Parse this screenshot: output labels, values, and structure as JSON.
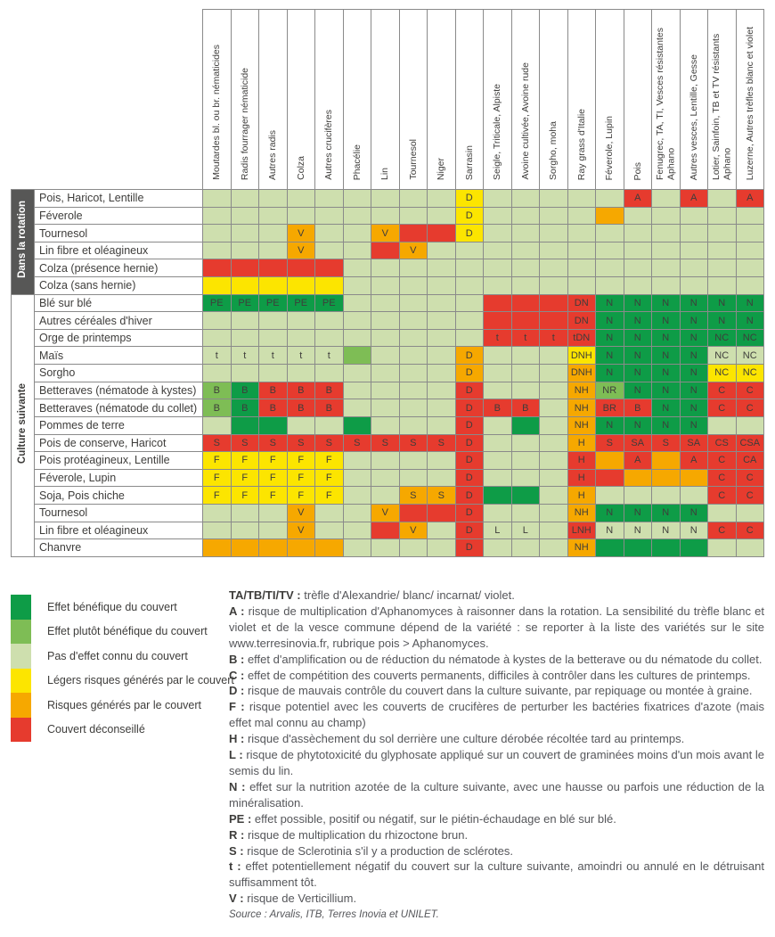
{
  "palette": {
    "dark_green": "#0E9C47",
    "medium_green": "#7EBD55",
    "light_green": "#CEDFAE",
    "yellow": "#FCE500",
    "orange": "#F6A800",
    "red": "#E63B2E",
    "band_gray": "#575756",
    "grid_line": "#8A8A8A",
    "letter_color": "#3E3D3B"
  },
  "cell_color_keys": {
    "G": "dark_green",
    "g": "medium_green",
    "L": "light_green",
    "Y": "yellow",
    "O": "orange",
    "R": "red"
  },
  "table": {
    "column_headers": [
      "Moutardes bl. ou br. nématicides",
      "Radis fourrager nématicide",
      "Autres radis",
      "Colza",
      "Autres crucifères",
      "Phacélie",
      "Lin",
      "Tournesol",
      "Niger",
      "Sarrasin",
      "Seigle, Triticale, Alpiste",
      "Avoine cultivée, Avoine rude",
      "Sorgho, moha",
      "Ray grass d'Italie",
      "Féverole, Lupin",
      "Pois",
      "Fenugrec, TA, TI, Vesces résistantes Aphano",
      "Autres vesces, Lentille, Gesse",
      "Lotier, Sainfoin, TB et TV résistants Aphano",
      "Luzerne, Autres trèfles blanc et violet"
    ],
    "row_groups": [
      {
        "label": "Dans la rotation",
        "start": 0,
        "span": 6,
        "style": "dark"
      },
      {
        "label": "Culture suivante",
        "start": 6,
        "span": 15,
        "style": "light"
      }
    ],
    "rows": [
      {
        "label": "Pois, Haricot, Lentille",
        "cells": [
          "L",
          "L",
          "L",
          "L",
          "L",
          "L",
          "L",
          "L",
          "L",
          "Y:D",
          "L",
          "L",
          "L",
          "L",
          "L",
          "R:A",
          "L",
          "R:A",
          "L",
          "R:A"
        ]
      },
      {
        "label": "Féverole",
        "cells": [
          "L",
          "L",
          "L",
          "L",
          "L",
          "L",
          "L",
          "L",
          "L",
          "Y:D",
          "L",
          "L",
          "L",
          "L",
          "O",
          "L",
          "L",
          "L",
          "L",
          "L"
        ]
      },
      {
        "label": "Tournesol",
        "cells": [
          "L",
          "L",
          "L",
          "O:V",
          "L",
          "L",
          "O:V",
          "R",
          "R",
          "Y:D",
          "L",
          "L",
          "L",
          "L",
          "L",
          "L",
          "L",
          "L",
          "L",
          "L"
        ]
      },
      {
        "label": "Lin fibre et oléagineux",
        "cells": [
          "L",
          "L",
          "L",
          "O:V",
          "L",
          "L",
          "R",
          "O:V",
          "L",
          "L",
          "L",
          "L",
          "L",
          "L",
          "L",
          "L",
          "L",
          "L",
          "L",
          "L"
        ]
      },
      {
        "label": "Colza (présence hernie)",
        "cells": [
          "R",
          "R",
          "R",
          "R",
          "R",
          "L",
          "L",
          "L",
          "L",
          "L",
          "L",
          "L",
          "L",
          "L",
          "L",
          "L",
          "L",
          "L",
          "L",
          "L"
        ]
      },
      {
        "label": "Colza (sans hernie)",
        "cells": [
          "Y",
          "Y",
          "Y",
          "Y",
          "Y",
          "L",
          "L",
          "L",
          "L",
          "L",
          "L",
          "L",
          "L",
          "L",
          "L",
          "L",
          "L",
          "L",
          "L",
          "L"
        ]
      },
      {
        "label": "Blé sur blé",
        "cells": [
          "G:PE",
          "G:PE",
          "G:PE",
          "G:PE",
          "G:PE",
          "L",
          "L",
          "L",
          "L",
          "L",
          "R",
          "R",
          "R",
          "R:DN",
          "G:N",
          "G:N",
          "G:N",
          "G:N",
          "G:N",
          "G:N"
        ]
      },
      {
        "label": "Autres céréales d'hiver",
        "cells": [
          "L",
          "L",
          "L",
          "L",
          "L",
          "L",
          "L",
          "L",
          "L",
          "L",
          "R",
          "R",
          "R",
          "R:DN",
          "G:N",
          "G:N",
          "G:N",
          "G:N",
          "G:N",
          "G:N"
        ]
      },
      {
        "label": "Orge de printemps",
        "cells": [
          "L",
          "L",
          "L",
          "L",
          "L",
          "L",
          "L",
          "L",
          "L",
          "L",
          "R:t",
          "R:t",
          "R:t",
          "R:tDN",
          "G:N",
          "G:N",
          "G:N",
          "G:N",
          "G:NC",
          "G:NC"
        ]
      },
      {
        "label": "Maïs",
        "cells": [
          "L:t",
          "L:t",
          "L:t",
          "L:t",
          "L:t",
          "g",
          "L",
          "L",
          "L",
          "O:D",
          "L",
          "L",
          "L",
          "Y:DNH",
          "G:N",
          "G:N",
          "G:N",
          "G:N",
          "L:NC",
          "L:NC"
        ]
      },
      {
        "label": "Sorgho",
        "cells": [
          "L",
          "L",
          "L",
          "L",
          "L",
          "L",
          "L",
          "L",
          "L",
          "O:D",
          "L",
          "L",
          "L",
          "O:DNH",
          "G:N",
          "G:N",
          "G:N",
          "G:N",
          "Y:NC",
          "Y:NC"
        ]
      },
      {
        "label": "Betteraves (nématode à kystes)",
        "cells": [
          "g:B",
          "G:B",
          "R:B",
          "R:B",
          "R:B",
          "L",
          "L",
          "L",
          "L",
          "R:D",
          "L",
          "L",
          "L",
          "O:NH",
          "g:NR",
          "G:N",
          "G:N",
          "G:N",
          "R:C",
          "R:C"
        ]
      },
      {
        "label": "Betteraves (nématode du collet)",
        "cells": [
          "g:B",
          "G:B",
          "R:B",
          "R:B",
          "R:B",
          "L",
          "L",
          "L",
          "L",
          "R:D",
          "R:B",
          "R:B",
          "L",
          "O:NH",
          "R:BR",
          "R:B",
          "G:N",
          "G:N",
          "R:C",
          "R:C"
        ]
      },
      {
        "label": "Pommes de terre",
        "cells": [
          "L",
          "G",
          "G",
          "L",
          "L",
          "G",
          "L",
          "L",
          "L",
          "R:D",
          "L",
          "G",
          "L",
          "O:NH",
          "G:N",
          "G:N",
          "G:N",
          "G:N",
          "L",
          "L"
        ]
      },
      {
        "label": "Pois de conserve, Haricot",
        "cells": [
          "R:S",
          "R:S",
          "R:S",
          "R:S",
          "R:S",
          "R:S",
          "R:S",
          "R:S",
          "R:S",
          "R:D",
          "L",
          "L",
          "L",
          "O:H",
          "R:S",
          "R:SA",
          "R:S",
          "R:SA",
          "R:CS",
          "R:CSA"
        ]
      },
      {
        "label": "Pois protéagineux, Lentille",
        "cells": [
          "Y:F",
          "Y:F",
          "Y:F",
          "Y:F",
          "Y:F",
          "L",
          "L",
          "L",
          "L",
          "R:D",
          "L",
          "L",
          "L",
          "R:H",
          "O",
          "R:A",
          "O",
          "R:A",
          "R:C",
          "R:CA"
        ]
      },
      {
        "label": "Féverole, Lupin",
        "cells": [
          "Y:F",
          "Y:F",
          "Y:F",
          "Y:F",
          "Y:F",
          "L",
          "L",
          "L",
          "L",
          "R:D",
          "L",
          "L",
          "L",
          "R:H",
          "R",
          "O",
          "O",
          "O",
          "R:C",
          "R:C"
        ]
      },
      {
        "label": "Soja, Pois chiche",
        "cells": [
          "Y:F",
          "Y:F",
          "Y:F",
          "Y:F",
          "Y:F",
          "L",
          "L",
          "O:S",
          "O:S",
          "R:D",
          "G",
          "G",
          "L",
          "O:H",
          "L",
          "L",
          "L",
          "L",
          "R:C",
          "R:C"
        ]
      },
      {
        "label": "Tournesol",
        "cells": [
          "L",
          "L",
          "L",
          "O:V",
          "L",
          "L",
          "O:V",
          "R",
          "R",
          "R:D",
          "L",
          "L",
          "L",
          "O:NH",
          "G:N",
          "G:N",
          "G:N",
          "G:N",
          "L",
          "L"
        ]
      },
      {
        "label": "Lin fibre et oléagineux",
        "cells": [
          "L",
          "L",
          "L",
          "O:V",
          "L",
          "L",
          "R",
          "O:V",
          "L",
          "R:D",
          "L:L",
          "L:L",
          "L",
          "R:LNH",
          "L:N",
          "L:N",
          "L:N",
          "L:N",
          "R:C",
          "R:C"
        ]
      },
      {
        "label": "Chanvre",
        "cells": [
          "O",
          "O",
          "O",
          "O",
          "O",
          "L",
          "L",
          "L",
          "L",
          "R:D",
          "L",
          "L",
          "L",
          "O:NH",
          "G",
          "G",
          "G",
          "G",
          "L",
          "L"
        ]
      }
    ]
  },
  "legend": {
    "items": [
      {
        "color": "dark_green",
        "label": "Effet bénéfique du couvert"
      },
      {
        "color": "medium_green",
        "label": "Effet plutôt bénéfique du couvert"
      },
      {
        "color": "light_green",
        "label": "Pas d'effet connu du couvert"
      },
      {
        "color": "yellow",
        "label": "Légers risques générés par le couvert"
      },
      {
        "color": "orange",
        "label": "Risques générés par le couvert"
      },
      {
        "color": "red",
        "label": "Couvert déconseillé"
      }
    ]
  },
  "notes": [
    {
      "term": "TA/TB/TI/TV",
      "text": "trèfle d'Alexandrie/ blanc/ incarnat/ violet."
    },
    {
      "term": "A",
      "text": "risque de multiplication d'Aphanomyces à raisonner dans la rotation. La sensibilité du trèfle blanc et violet et de la vesce commune dépend de la variété : se reporter à la liste des variétés sur le site www.terresinovia.fr, rubrique pois > Aphanomyces."
    },
    {
      "term": "B",
      "text": "effet d'amplification ou de réduction du nématode à kystes de la betterave ou du nématode du collet."
    },
    {
      "term": "C",
      "text": "effet de compétition des couverts permanents, difficiles à contrôler dans les cultures de printemps."
    },
    {
      "term": "D",
      "text": "risque de mauvais contrôle du couvert dans la culture suivante, par repiquage ou montée à graine."
    },
    {
      "term": "F",
      "text": "risque potentiel avec les couverts de crucifères de perturber les bactéries fixatrices d'azote (mais effet mal connu au champ)"
    },
    {
      "term": "H",
      "text": "risque d'assèchement du sol derrière une culture dérobée récoltée tard au printemps."
    },
    {
      "term": "L",
      "text": "risque de phytotoxicité du glyphosate appliqué sur un couvert de graminées moins d'un mois avant le semis du lin."
    },
    {
      "term": "N",
      "text": "effet sur la nutrition azotée de la culture suivante, avec une hausse ou parfois une réduction de la minéralisation."
    },
    {
      "term": "PE",
      "text": "effet possible, positif ou négatif, sur le piétin-échaudage en blé sur blé."
    },
    {
      "term": "R",
      "text": "risque de multiplication du rhizoctone brun."
    },
    {
      "term": "S",
      "text": "risque de Sclerotinia s'il y a production de sclérotes."
    },
    {
      "term": "t",
      "text": "effet potentiellement négatif du couvert sur la culture suivante, amoindri ou annulé en le détruisant suffisamment tôt."
    },
    {
      "term": "V",
      "text": "risque de Verticillium."
    }
  ],
  "source": "Source : Arvalis, ITB, Terres Inovia et UNILET."
}
